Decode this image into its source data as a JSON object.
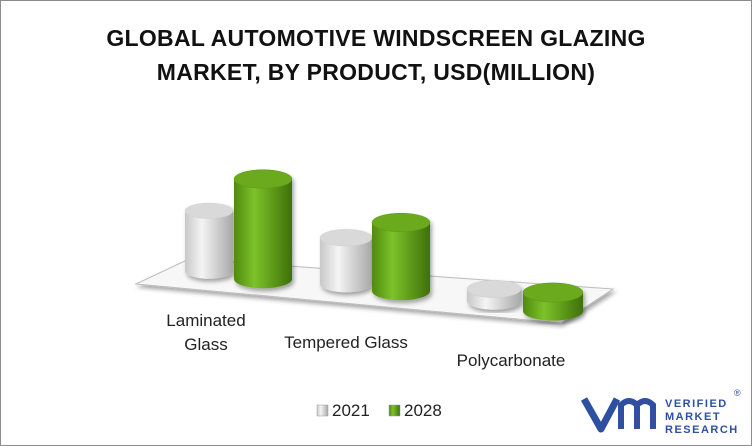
{
  "chart_data": {
    "type": "cylinder3d",
    "title": "GLOBAL AUTOMOTIVE WINDSCREEN GLAZING MARKET, BY PRODUCT, USD(MILLION)",
    "categories": [
      "Laminated Glass",
      "Tempered Glass",
      "Polycarbonate"
    ],
    "series": [
      {
        "name": "2021",
        "color": "#d9d9d9",
        "values": [
          65,
          50,
          13
        ]
      },
      {
        "name": "2028",
        "color": "#6aaa1e",
        "values": [
          108,
          74,
          20
        ]
      }
    ],
    "legend": "bottom"
  },
  "logo": {
    "lines": [
      "VERIFIED",
      "MARKET",
      "RESEARCH"
    ],
    "mark": "®"
  }
}
